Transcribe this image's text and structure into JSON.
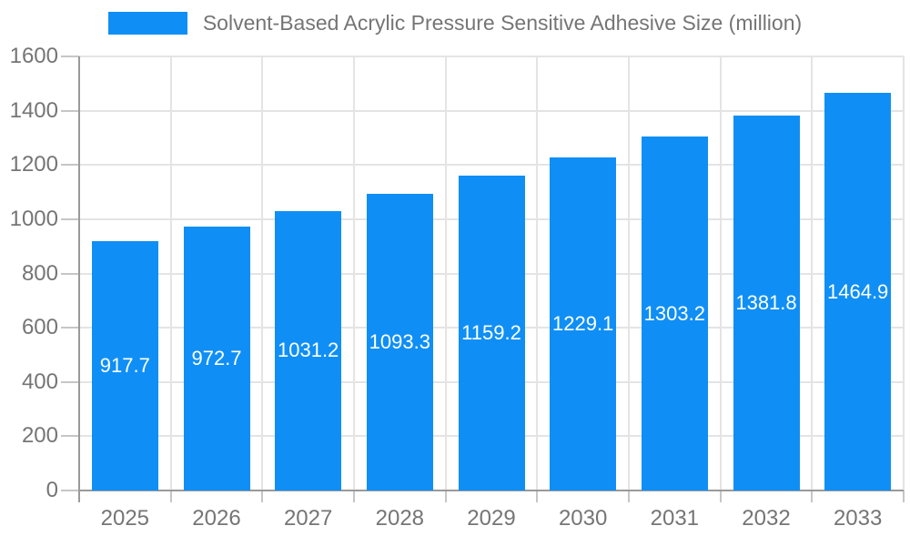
{
  "legend": {
    "series_label": "Solvent-Based Acrylic Pressure Sensitive Adhesive Size (million)"
  },
  "chart_data": {
    "type": "bar",
    "title": "Solvent-Based Acrylic Pressure Sensitive Adhesive Size (million)",
    "xlabel": "",
    "ylabel": "",
    "categories": [
      "2025",
      "2026",
      "2027",
      "2028",
      "2029",
      "2030",
      "2031",
      "2032",
      "2033"
    ],
    "values": [
      917.7,
      972.7,
      1031.2,
      1093.3,
      1159.2,
      1229.1,
      1303.2,
      1381.8,
      1464.9
    ],
    "ylim": [
      0,
      1600
    ],
    "ytick_step": 200,
    "yticks": [
      0,
      200,
      400,
      600,
      800,
      1000,
      1200,
      1400,
      1600
    ],
    "grid": true,
    "legend_position": "top",
    "value_labels_inside_bars": true,
    "colors": {
      "bar": "#0f8ff5",
      "bar_value_text": "#ffffff",
      "axis_text": "#757575",
      "title_text": "#757575",
      "gridline": "#e4e4e4",
      "axis_line": "#9a9a9a",
      "tick": "#c6c6c6",
      "background": "#ffffff"
    }
  }
}
